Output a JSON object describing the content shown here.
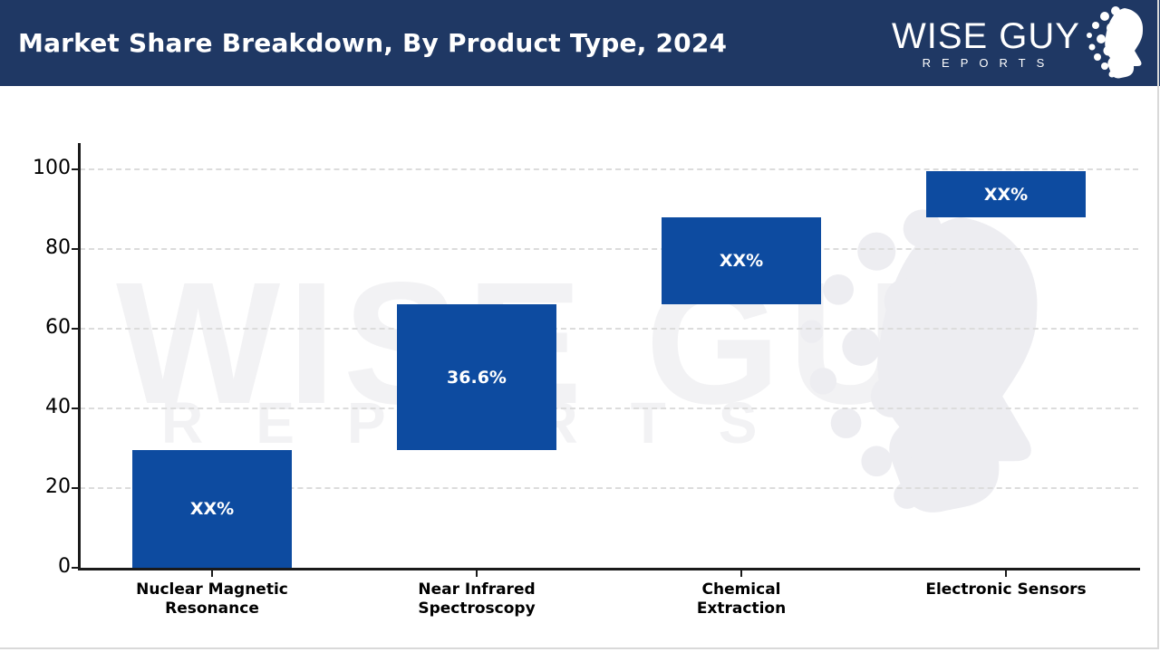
{
  "header": {
    "title": "Market Share Breakdown, By Product Type, 2024",
    "logo": {
      "line1": "WISE GUY",
      "line2": "REPORTS"
    }
  },
  "watermark": {
    "line1": "WISE GUY",
    "line2": "REPORTS"
  },
  "chart_data": {
    "type": "bar",
    "variant": "floating-segment-waterfall",
    "title": "Market Share Breakdown, By Product Type, 2024",
    "categories": [
      "Nuclear Magnetic Resonance",
      "Near Infrared Spectroscopy",
      "Chemical Extraction",
      "Electronic Sensors"
    ],
    "category_lines": [
      [
        "Nuclear Magnetic",
        "Resonance"
      ],
      [
        "Near Infrared",
        "Spectroscopy"
      ],
      [
        "Chemical",
        "Extraction"
      ],
      [
        "Electronic Sensors"
      ]
    ],
    "segments": [
      {
        "category": "Nuclear Magnetic Resonance",
        "start": 0,
        "end": 29.5,
        "label": "XX%"
      },
      {
        "category": "Near Infrared Spectroscopy",
        "start": 29.5,
        "end": 66.1,
        "label": "36.6%",
        "value": 36.6
      },
      {
        "category": "Chemical Extraction",
        "start": 66.1,
        "end": 87.9,
        "label": "XX%"
      },
      {
        "category": "Electronic Sensors",
        "start": 87.9,
        "end": 99.6,
        "label": "XX%"
      }
    ],
    "xlabel": "",
    "ylabel": "",
    "yticks": [
      0,
      20,
      40,
      60,
      80,
      100
    ],
    "ylim": [
      0,
      105
    ],
    "legend": "none",
    "grid": "horizontal-dashed",
    "colors": {
      "bar": "#0d4ba0",
      "grid": "#dcdcdc",
      "axis": "#1a1a1a",
      "bar_label": "#ffffff"
    }
  },
  "colors": {
    "header_bg": "#1f3864",
    "page_bg": "#ffffff",
    "watermark": "#f2f2f4"
  }
}
